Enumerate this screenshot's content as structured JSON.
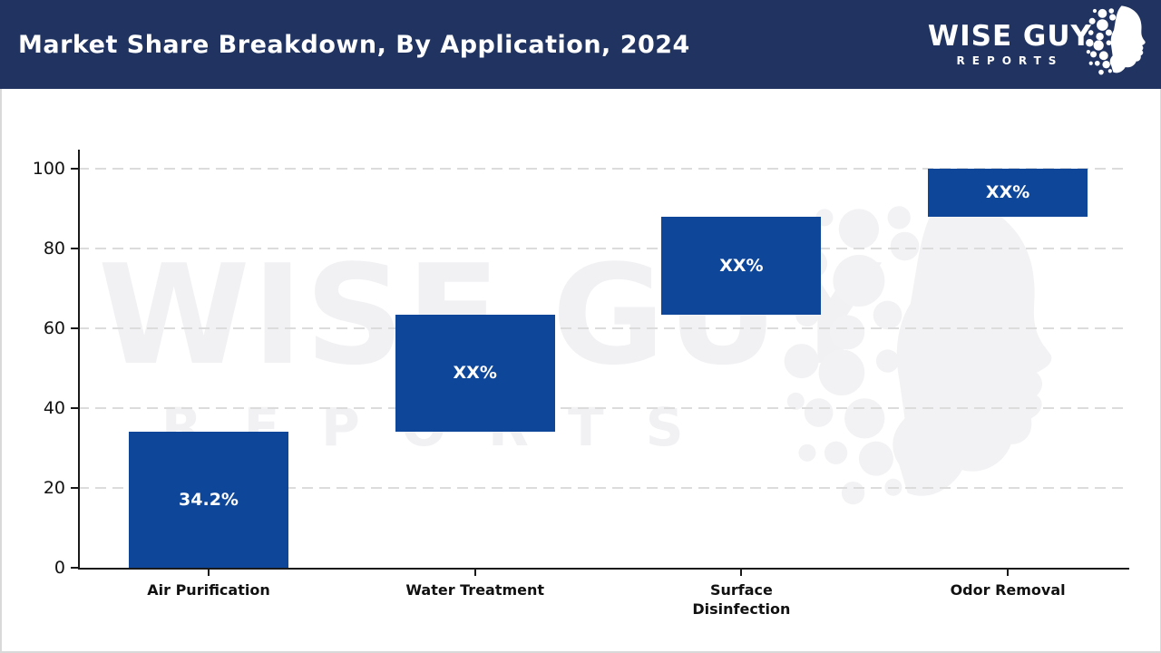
{
  "header": {
    "title": "Market Share Breakdown, By Application, 2024",
    "logo": {
      "line1": "WISE GUY",
      "line2": "REPORTS"
    }
  },
  "watermark": {
    "line1": "WISE GUY",
    "line2": "REPORTS"
  },
  "chart_data": {
    "type": "bar",
    "subtype": "waterfall",
    "title": "Market Share Breakdown, By Application, 2024",
    "categories": [
      "Air Purification",
      "Water Treatment",
      "Surface Disinfection",
      "Odor Removal"
    ],
    "segments": [
      {
        "category": "Air Purification",
        "start": 0,
        "end": 34.2,
        "label": "34.2%"
      },
      {
        "category": "Water Treatment",
        "start": 34.2,
        "end": 63.4,
        "label": "XX%"
      },
      {
        "category": "Surface Disinfection",
        "start": 63.4,
        "end": 88.0,
        "label": "XX%"
      },
      {
        "category": "Odor Removal",
        "start": 88.0,
        "end": 100.0,
        "label": "XX%"
      }
    ],
    "yticks": [
      0,
      20,
      40,
      60,
      80,
      100
    ],
    "ylim": [
      0,
      100
    ],
    "xlabel": "",
    "ylabel": "",
    "grid": "horizontal-dashed",
    "legend": "none"
  },
  "colors": {
    "header_bg": "#213461",
    "bar_blue": "#0e4699",
    "grid": "#dcdcdc",
    "axis": "#1a1a1a",
    "watermark": "#f1f1f4",
    "edge_line": "#d9d9d9"
  }
}
